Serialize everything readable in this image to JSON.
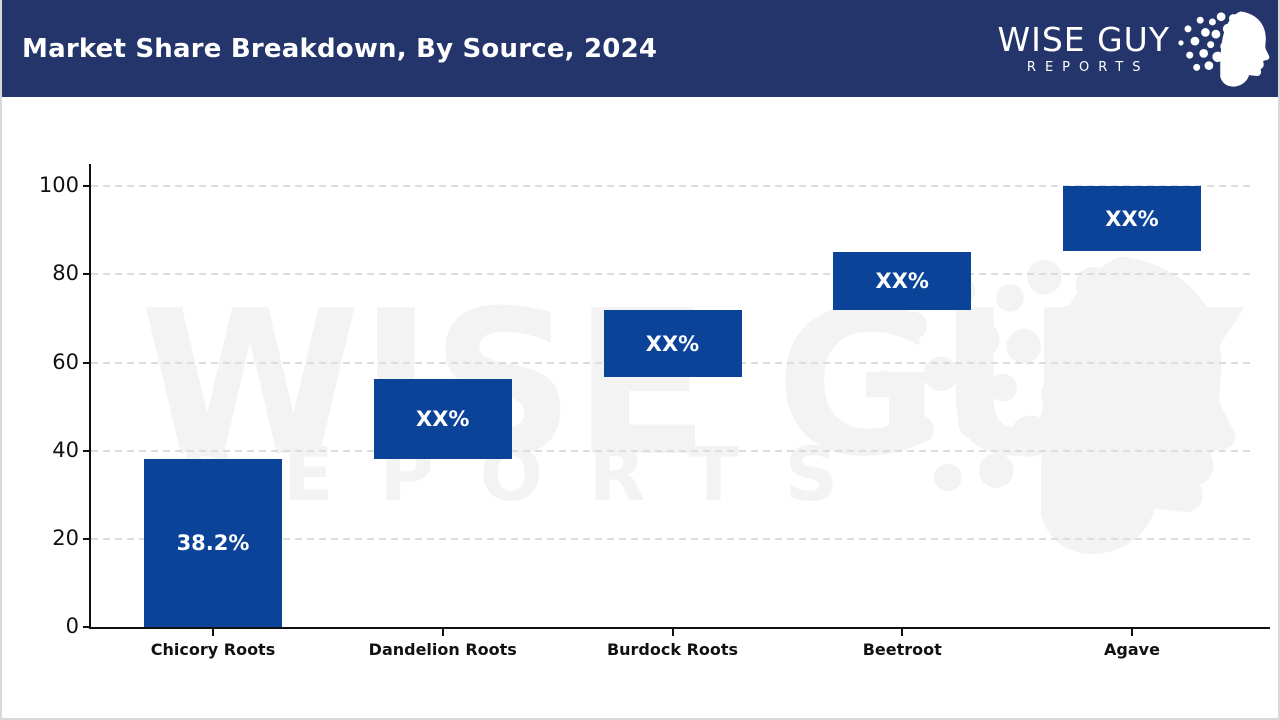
{
  "header": {
    "title": "Market Share Breakdown, By Source, 2024",
    "logo": {
      "line1": "WISE GUY",
      "line2": "REPORTS"
    }
  },
  "watermark": {
    "line1": "WISE GUY",
    "line2": "REPORTS"
  },
  "colors": {
    "header_bg": "#23356a",
    "bar": "#0b4398",
    "bar_label": "#ffffff",
    "grid": "#dcdcdc",
    "axis": "#111111",
    "watermark": "#f3f3f3",
    "page_border": "#d9d9d9"
  },
  "chart_data": {
    "type": "bar",
    "subtype": "waterfall",
    "title": "Market Share Breakdown, By Source, 2024",
    "xlabel": "",
    "ylabel": "",
    "categories": [
      "Chicory Roots",
      "Dandelion Roots",
      "Burdock Roots",
      "Beetroot",
      "Agave"
    ],
    "bars": [
      {
        "category": "Chicory Roots",
        "from": 0,
        "to": 38.2,
        "label": "38.2%"
      },
      {
        "category": "Dandelion Roots",
        "from": 38.2,
        "to": 56.3,
        "label": "XX%"
      },
      {
        "category": "Burdock Roots",
        "from": 56.7,
        "to": 71.9,
        "label": "XX%"
      },
      {
        "category": "Beetroot",
        "from": 71.9,
        "to": 85.1,
        "label": "XX%"
      },
      {
        "category": "Agave",
        "from": 85.3,
        "to": 100,
        "label": "XX%"
      }
    ],
    "y_ticks": [
      0,
      20,
      40,
      60,
      80,
      100
    ],
    "ylim": [
      0,
      105
    ],
    "grid": "dashed-horizontal",
    "legend": "none"
  }
}
